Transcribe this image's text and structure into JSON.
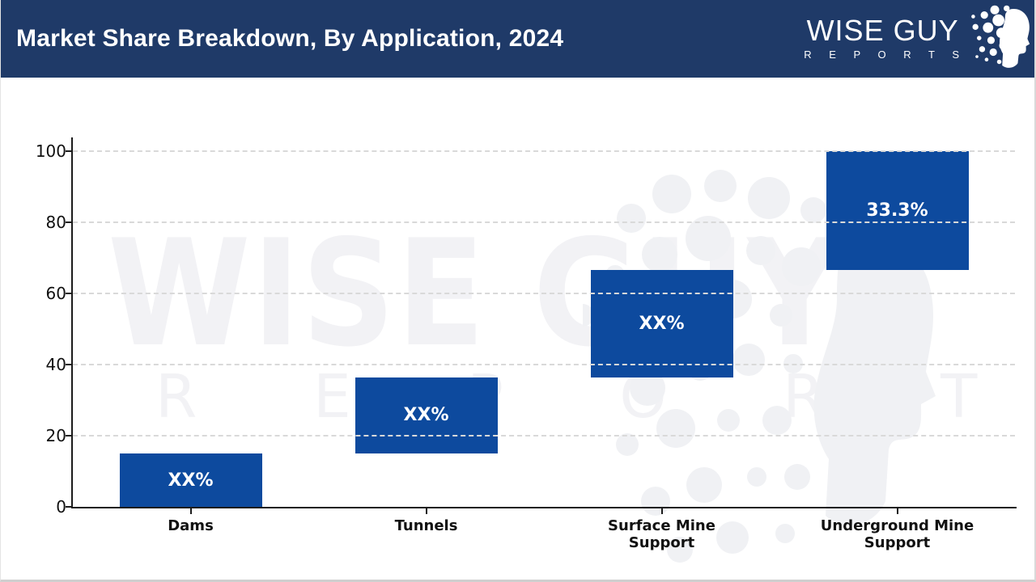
{
  "header": {
    "title": "Market Share Breakdown, By Application, 2024",
    "logo_line1": "WISE GUY",
    "logo_line2": "R E P O R T S"
  },
  "watermark": {
    "line1": "WISE GUY",
    "line2": "R E P O R T S"
  },
  "colors": {
    "header_bg": "#1f3a68",
    "bar_blue": "#0d4a9e",
    "grid_gray": "#d9d9d9",
    "axis_black": "#1c1c1c",
    "watermark_gray": "#f2f2f5"
  },
  "chart_data": {
    "type": "bar",
    "subtype": "floating_segment_bars",
    "title": "Market Share Breakdown, By Application, 2024",
    "categories": [
      "Dams",
      "Tunnels",
      "Surface Mine Support",
      "Underground Mine Support"
    ],
    "x_tick_labels": [
      "Dams",
      "Tunnels",
      "Surface Mine\nSupport",
      "Underground Mine\nSupport"
    ],
    "segments": [
      {
        "category": "Dams",
        "from": 0,
        "to": 15,
        "label": "XX%"
      },
      {
        "category": "Tunnels",
        "from": 15,
        "to": 36.4,
        "label": "XX%"
      },
      {
        "category": "Surface Mine Support",
        "from": 36.4,
        "to": 66.7,
        "label": "XX%"
      },
      {
        "category": "Underground Mine Support",
        "from": 66.7,
        "to": 100,
        "label": "33.3%"
      }
    ],
    "xlabel": "",
    "ylabel": "",
    "ylim": [
      0,
      100
    ],
    "yticks": [
      0,
      20,
      40,
      60,
      80,
      100
    ],
    "grid": {
      "axis": "y",
      "style": "dashed",
      "drawn_over_bars": true
    },
    "legend": "none",
    "bar_label_color": "#ffffff",
    "bar_color": "#0d4a9e"
  }
}
